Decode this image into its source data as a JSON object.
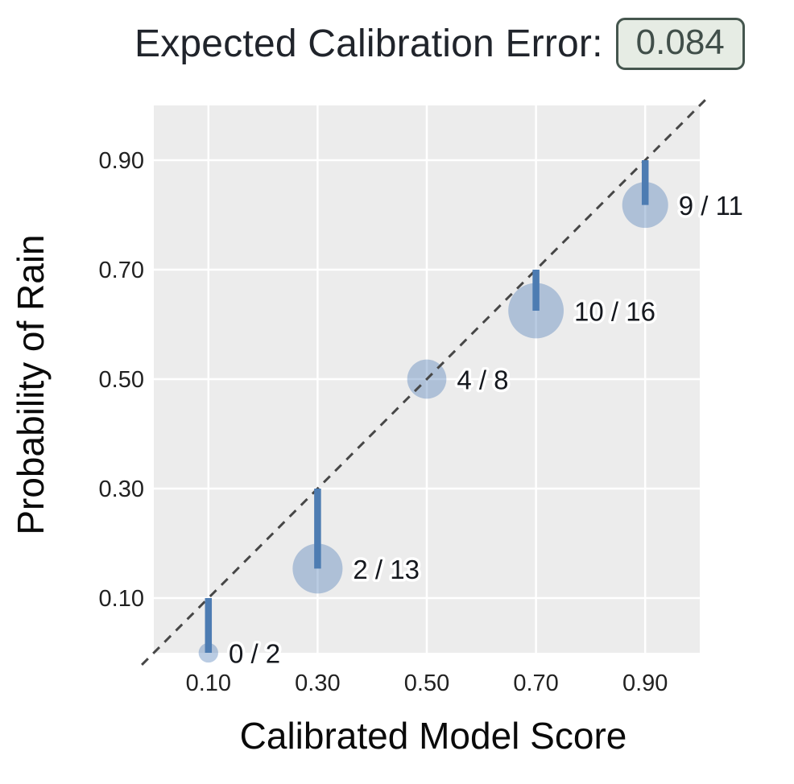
{
  "header": {
    "title_label": "Expected Calibration Error:",
    "ece_value": "0.084"
  },
  "colors": {
    "background": "#ffffff",
    "plot_bg": "#ececec",
    "grid": "#ffffff",
    "diagonal": "#474747",
    "bar": "#4d7cb2",
    "bubble": "#4a7ab5",
    "bubble_opacity": 0.38,
    "annotation_text": "#15181e",
    "annotation_halo": "#ffffff",
    "tick_text": "#212121",
    "axis_title_text": "#0a0a0a",
    "title_text": "#20242b",
    "ece_box_bg": "#e6ece4",
    "ece_box_border": "#45564e",
    "ece_text": "#414f4a"
  },
  "chart_data": {
    "type": "scatter",
    "subtype": "calibration-reliability-diagram",
    "title": "Expected Calibration Error: 0.084",
    "xlabel": "Calibrated Model Score",
    "ylabel": "Probability of Rain",
    "xlim": [
      0,
      1
    ],
    "ylim": [
      0,
      1
    ],
    "xticks": [
      0.1,
      0.3,
      0.5,
      0.7,
      0.9
    ],
    "xtick_labels": [
      "0.10",
      "0.30",
      "0.50",
      "0.70",
      "0.90"
    ],
    "yticks": [
      0.1,
      0.3,
      0.5,
      0.7,
      0.9
    ],
    "ytick_labels": [
      "0.10",
      "0.30",
      "0.50",
      "0.70",
      "0.90"
    ],
    "grid": true,
    "legend": false,
    "ece": 0.084,
    "diagonal": {
      "style": "dashed",
      "from": 0,
      "to": 1,
      "meaning": "perfect calibration y = x"
    },
    "points": [
      {
        "score": 0.1,
        "hits": 0,
        "total": 2,
        "observed_freq": 0.0,
        "label": "0 / 2"
      },
      {
        "score": 0.3,
        "hits": 2,
        "total": 13,
        "observed_freq": 0.154,
        "label": "2 / 13"
      },
      {
        "score": 0.5,
        "hits": 4,
        "total": 8,
        "observed_freq": 0.5,
        "label": "4 / 8"
      },
      {
        "score": 0.7,
        "hits": 10,
        "total": 16,
        "observed_freq": 0.625,
        "label": "10 / 16"
      },
      {
        "score": 0.9,
        "hits": 9,
        "total": 11,
        "observed_freq": 0.818,
        "label": "9 / 11"
      }
    ],
    "bubble": {
      "radius_per_sqrt_count": 8.6
    },
    "error_bars": true
  }
}
